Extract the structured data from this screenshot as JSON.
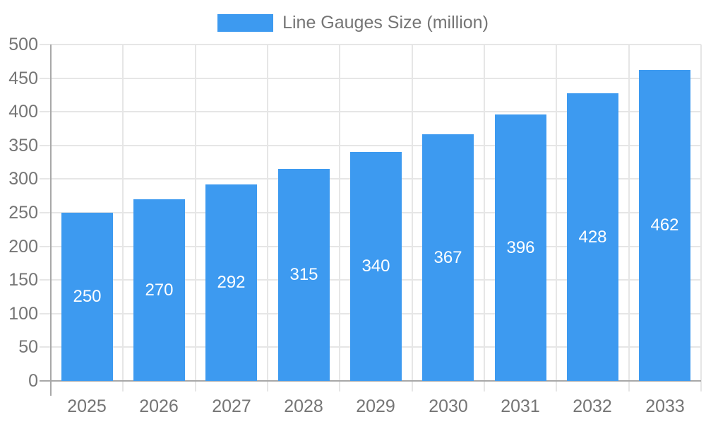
{
  "legend": {
    "label": "Line Gauges Size (million)"
  },
  "chart_data": {
    "type": "bar",
    "title": "Line Gauges Size (million)",
    "categories": [
      "2025",
      "2026",
      "2027",
      "2028",
      "2029",
      "2030",
      "2031",
      "2032",
      "2033"
    ],
    "series": [
      {
        "name": "Line Gauges Size (million)",
        "values": [
          250,
          270,
          292,
          315,
          340,
          367,
          396,
          428,
          462
        ]
      }
    ],
    "xlabel": "",
    "ylabel": "",
    "ylim": [
      0,
      500
    ],
    "ytick_step": 50,
    "grid": true,
    "legend_position": "top",
    "bar_labels_visible": true
  },
  "colors": {
    "bar": "#3D9AF0",
    "axis": "#A8A8A8",
    "grid": "#E6E6E6",
    "tick_text": "#757575",
    "bar_label_text": "#FFFFFF",
    "background": "#FFFFFF"
  }
}
